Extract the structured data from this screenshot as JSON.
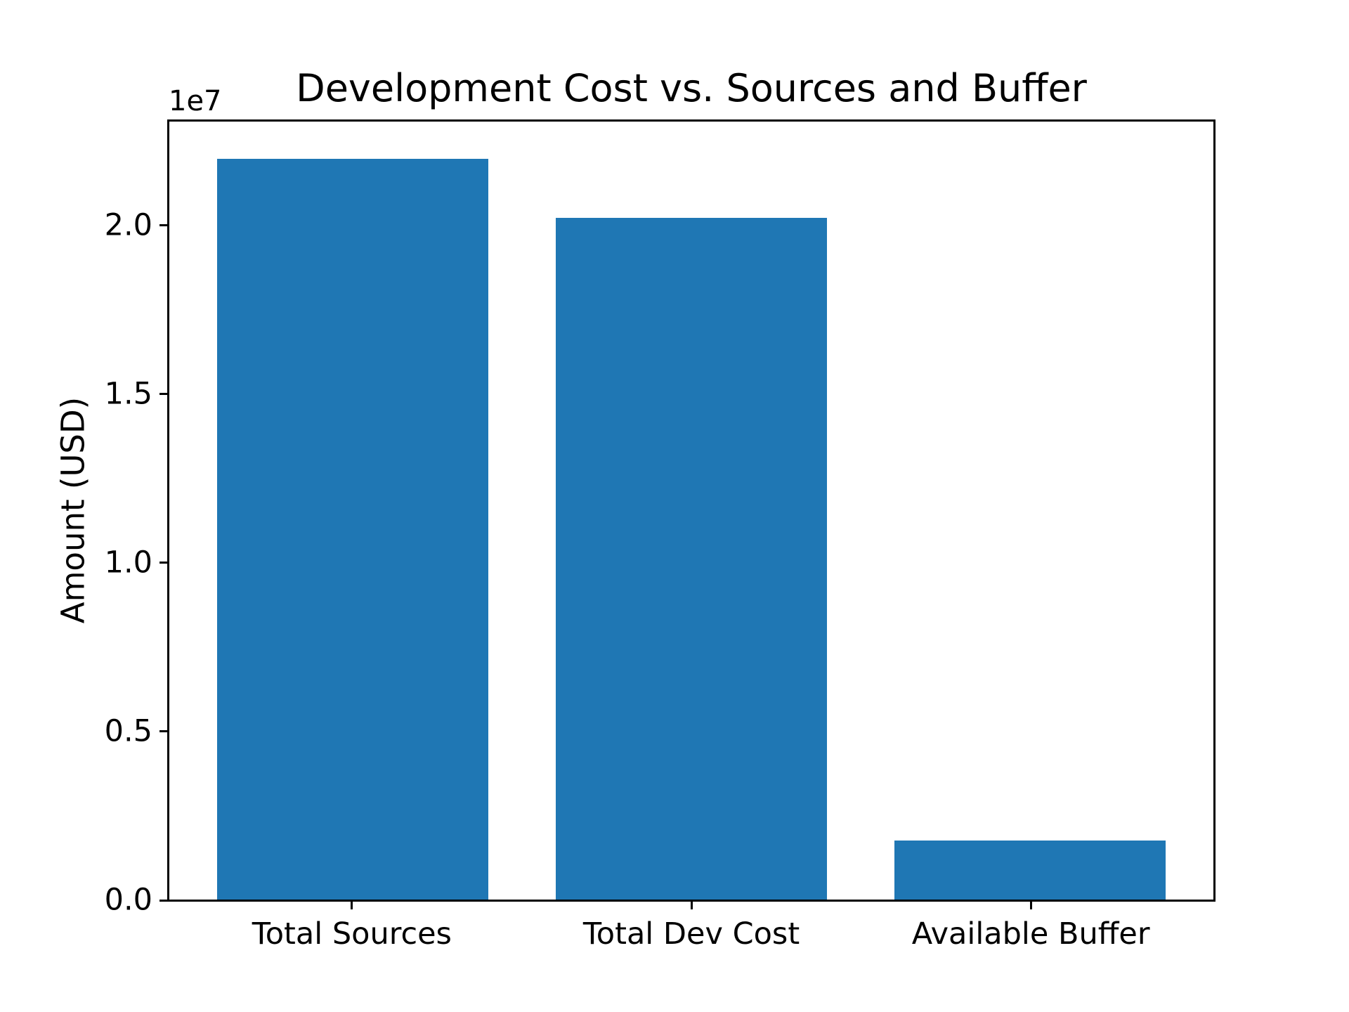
{
  "chart_data": {
    "type": "bar",
    "title": "Development Cost vs. Sources and Buffer",
    "xlabel": "",
    "ylabel": "Amount (USD)",
    "offset_text": "1e7",
    "categories": [
      "Total Sources",
      "Total Dev Cost",
      "Available Buffer"
    ],
    "values": [
      22000000,
      20250000,
      1750000
    ],
    "bar_color": "#1f77b4",
    "text_color": "#000000",
    "ylim": [
      0,
      23100000
    ],
    "xlim": [
      -0.54,
      2.54
    ],
    "bar_width_data_units": 0.8,
    "yticks": [
      {
        "value": 0,
        "label": "0.0"
      },
      {
        "value": 5000000,
        "label": "0.5"
      },
      {
        "value": 10000000,
        "label": "1.0"
      },
      {
        "value": 15000000,
        "label": "1.5"
      },
      {
        "value": 20000000,
        "label": "2.0"
      }
    ],
    "grid": false,
    "legend": null
  }
}
